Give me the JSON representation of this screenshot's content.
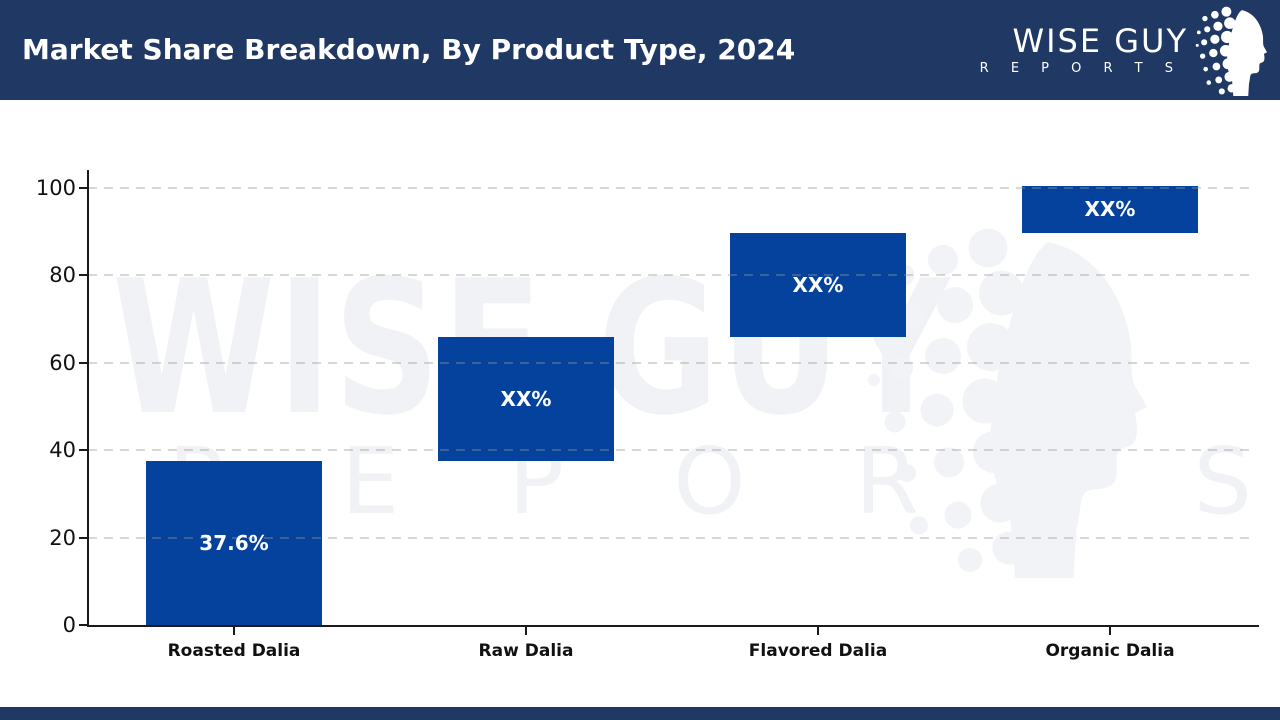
{
  "header": {
    "title": "Market Share Breakdown, By Product Type, 2024",
    "logo": {
      "name_line": "WISE GUY",
      "reports_line": "R E P O R T S"
    }
  },
  "watermark": {
    "name_line": "WISE GUY",
    "reports_line": "R E P O R T S"
  },
  "chart_data": {
    "type": "bar",
    "subtype": "waterfall-style floating bars",
    "title": "Market Share Breakdown, By Product Type, 2024",
    "categories": [
      "Roasted Dalia",
      "Raw Dalia",
      "Flavored Dalia",
      "Organic Dalia"
    ],
    "bars": [
      {
        "category": "Roasted Dalia",
        "start": 0,
        "end": 37.6,
        "label": "37.6%"
      },
      {
        "category": "Raw Dalia",
        "start": 37.6,
        "end": 65.9,
        "label": "XX%"
      },
      {
        "category": "Flavored Dalia",
        "start": 65.9,
        "end": 89.7,
        "label": "XX%"
      },
      {
        "category": "Organic Dalia",
        "start": 89.7,
        "end": 100.3,
        "label": "XX%"
      }
    ],
    "yticks": [
      0,
      20,
      40,
      60,
      80,
      100
    ],
    "ylim": [
      0,
      104
    ],
    "xlabel": "",
    "ylabel": "",
    "grid": "horizontal dashed",
    "legend": "none",
    "colors": {
      "bar": "#04429d",
      "bar_label": "#ffffff",
      "header_bg": "#1f3864",
      "grid": "#e3e3e3",
      "axis": "#1a1a1a",
      "watermark": "#f1f2f5"
    }
  }
}
